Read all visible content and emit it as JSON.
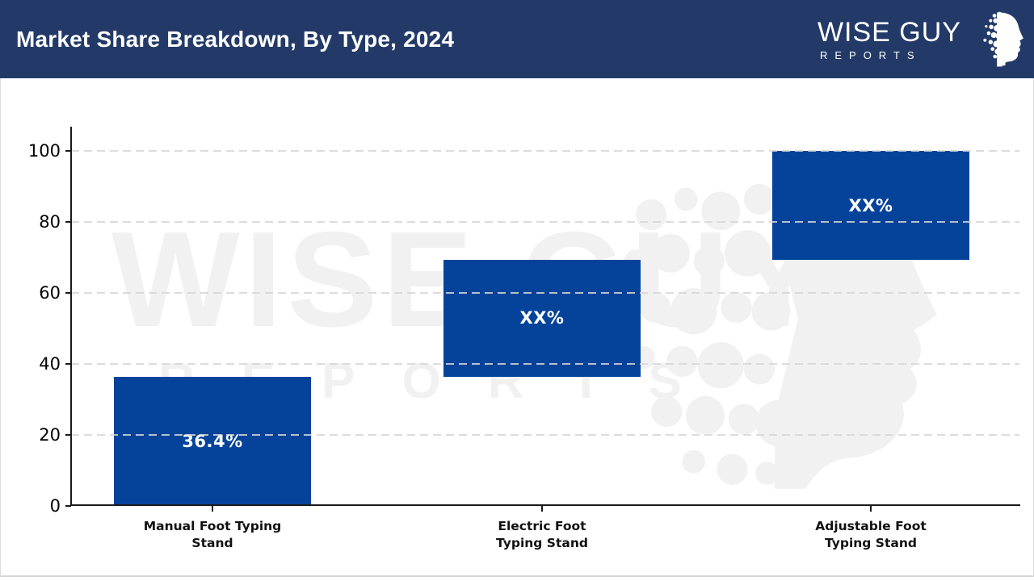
{
  "header": {
    "title": "Market Share Breakdown, By Type, 2024",
    "background_color": "#233a69",
    "logo": {
      "name": "WISE GUY",
      "sub": "REPORTS"
    }
  },
  "watermark": {
    "line1": "WISE GUY",
    "line2": "REPORTS"
  },
  "chart_data": {
    "type": "bar",
    "subtype": "waterfall-stacked-breakdown",
    "title": "Market Share Breakdown, By Type, 2024",
    "categories": [
      "Manual Foot Typing\nStand",
      "Electric Foot\nTyping Stand",
      "Adjustable Foot\nTyping Stand"
    ],
    "segments": [
      {
        "category": "Manual Foot Typing Stand",
        "start": 0,
        "end": 36.4
      },
      {
        "category": "Electric Foot Typing Stand",
        "start": 36.4,
        "end": 69.3
      },
      {
        "category": "Adjustable Foot Typing Stand",
        "start": 69.3,
        "end": 100
      }
    ],
    "bar_labels": [
      "36.4%",
      "XX%",
      "XX%"
    ],
    "ylim": [
      0,
      100
    ],
    "yticks": [
      0,
      20,
      40,
      60,
      80,
      100
    ],
    "xlabel": "",
    "ylabel": "",
    "grid": "dashed horizontal",
    "legend": "none",
    "bar_color": "#05439b",
    "bar_label_color": "#ffffff",
    "axis_color": "#1a1a1a",
    "grid_color": "#d6d6d6"
  }
}
